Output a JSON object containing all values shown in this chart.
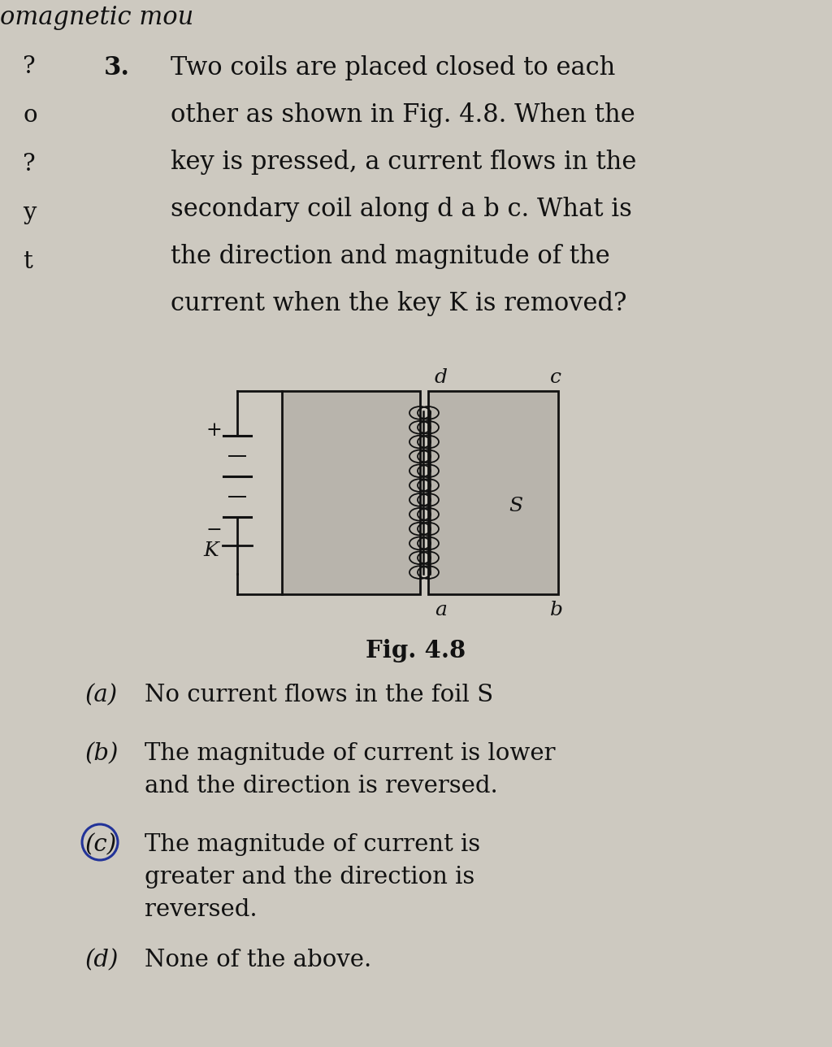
{
  "bg_color": "#cdc9c0",
  "text_color": "#111111",
  "fig_caption": "Fig. 4.8",
  "coil_turns": 12,
  "header_text": "omagnetic mou",
  "margin_chars": [
    "?",
    "o",
    "?",
    "y",
    "t"
  ],
  "question_num": "3.",
  "q_lines": [
    "Two coils are placed closed to each",
    "other as shown in Fig. 4.8. When the",
    "key is pressed, a current flows in the",
    "secondary coil along d a b c. What is",
    "the direction and magnitude of the",
    "current when the key K is removed?"
  ],
  "opt_a": "(a)  No current flows in the foil S",
  "opt_b1": "(b)  The magnitude of current is lower",
  "opt_b2": "       and the direction is reversed.",
  "opt_c1": "(c)  The magnitude of current is",
  "opt_c2": "       greater and the direction is",
  "opt_c3": "       reversed.",
  "opt_d": "(d)  None of the above."
}
